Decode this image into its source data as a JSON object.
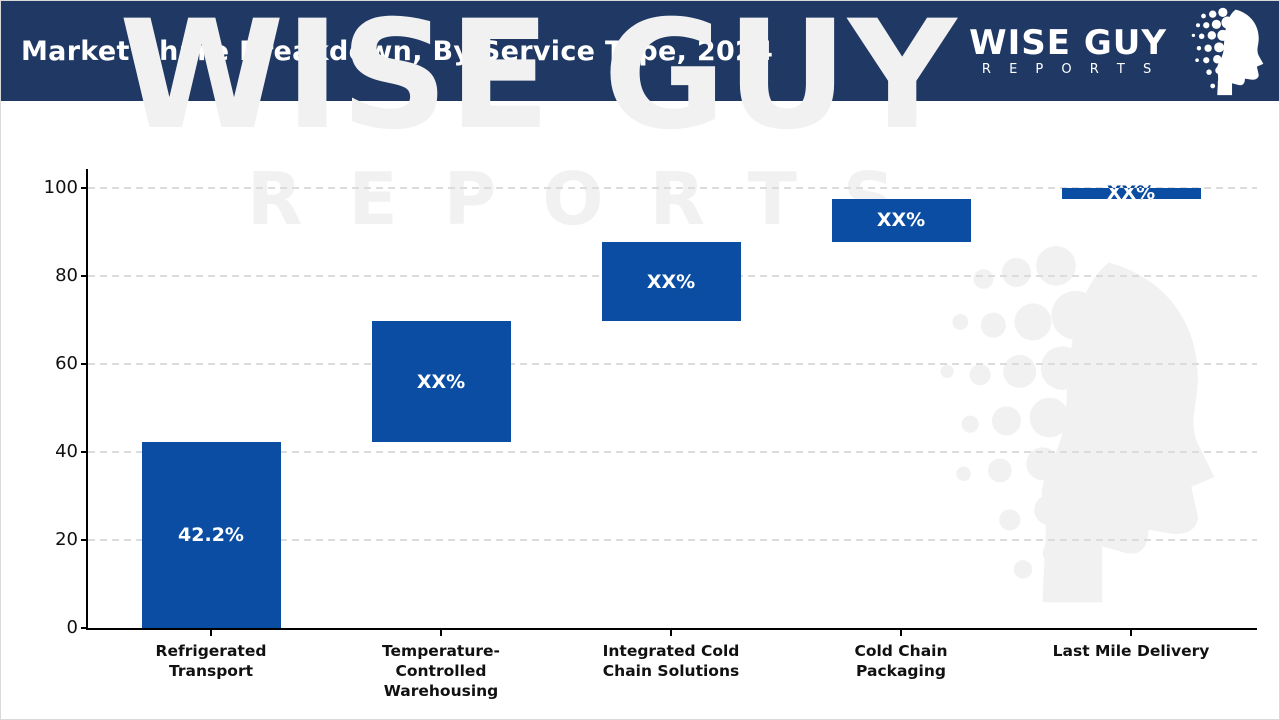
{
  "header": {
    "title": "Market Share Breakdown, By Service Type, 2024",
    "brand": {
      "name": "WISE GUY",
      "sub": "REPORTS"
    }
  },
  "watermark": {
    "line1": "WISE GUY",
    "line2": "REPORTS"
  },
  "colors": {
    "header_bg": "#1f3864",
    "bar": "#0b4da2",
    "bar_under_label": "#0c4697",
    "grid": "#dcdcdc",
    "axis": "#000000",
    "watermark": "#f1f1f1",
    "page_border": "#d9d9d9"
  },
  "chart_data": {
    "type": "bar",
    "subtype": "waterfall-stepped",
    "title": "Market Share Breakdown, By Service Type, 2024",
    "xlabel": "",
    "ylabel": "",
    "categories": [
      "Refrigerated Transport",
      "Temperature-Controlled Warehousing",
      "Integrated Cold Chain Solutions",
      "Cold Chain Packaging",
      "Last Mile Delivery"
    ],
    "category_display_lines": [
      [
        "Refrigerated",
        "Transport"
      ],
      [
        "Temperature-",
        "Controlled",
        "Warehousing"
      ],
      [
        "Integrated Cold",
        "Chain Solutions"
      ],
      [
        "Cold Chain",
        "Packaging"
      ],
      [
        "Last Mile Delivery"
      ]
    ],
    "segment_starts": [
      0,
      42.2,
      69.6,
      87.7,
      97.4
    ],
    "segment_ends": [
      42.2,
      69.6,
      87.7,
      97.4,
      100
    ],
    "values": [
      42.2,
      27.4,
      18.1,
      9.7,
      2.6
    ],
    "bar_labels": [
      "42.2%",
      "XX%",
      "XX%",
      "XX%",
      "XX%"
    ],
    "yticks": [
      0,
      20,
      40,
      60,
      80,
      100
    ],
    "ylim": [
      0,
      105
    ],
    "grid": "horizontal-dashed",
    "legend": "none"
  }
}
